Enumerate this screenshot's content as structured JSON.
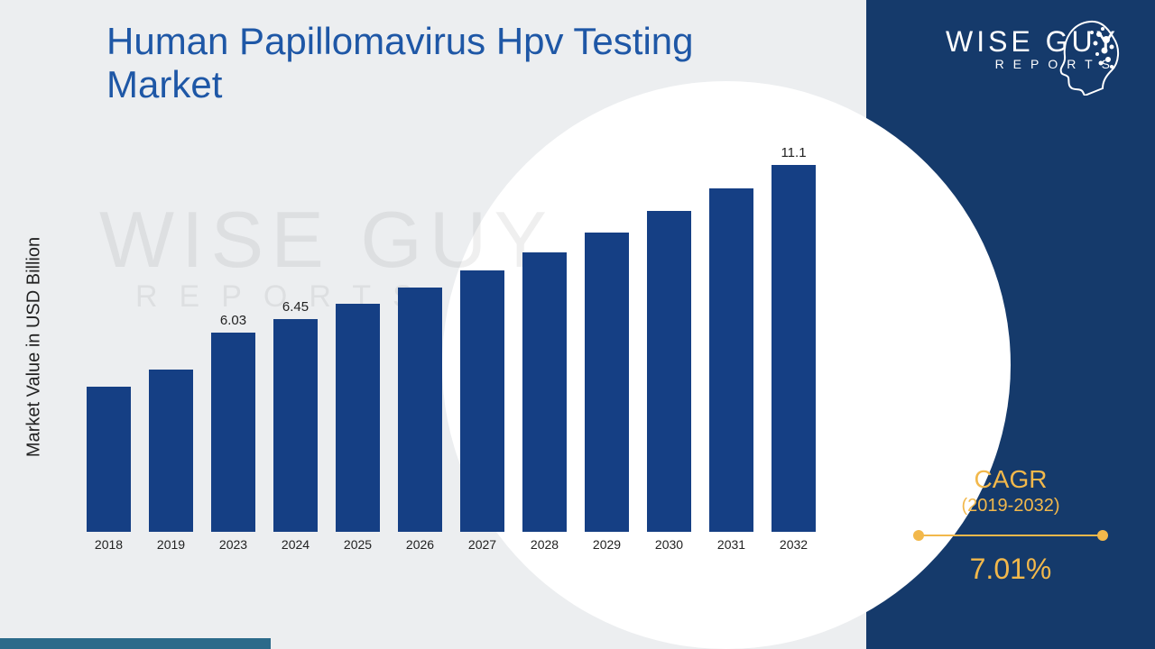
{
  "title": "Human Papillomavirus Hpv Testing Market",
  "ylabel": "Market Value in USD Billion",
  "logo": {
    "brand": "WISE GUY",
    "sub": "REPORTS"
  },
  "cagr": {
    "label": "CAGR",
    "period": "(2019-2032)",
    "value": "7.01%"
  },
  "watermark": {
    "big": "WISE GUY",
    "small": "REPORTS"
  },
  "chart": {
    "type": "bar",
    "ylim": [
      0,
      12
    ],
    "bar_color": "#153f84",
    "background_color": "#eceef0",
    "circle_color": "#ffffff",
    "panel_color": "#153a6b",
    "accent_color": "#f2b84b",
    "title_color": "#1e57a6",
    "title_fontsize": 42,
    "ylabel_fontsize": 20,
    "xlabel_fontsize": 14,
    "value_fontsize": 15,
    "bars": [
      {
        "year": "2018",
        "value": 4.4,
        "show": false
      },
      {
        "year": "2019",
        "value": 4.9,
        "show": false
      },
      {
        "year": "2023",
        "value": 6.03,
        "show": true
      },
      {
        "year": "2024",
        "value": 6.45,
        "show": true
      },
      {
        "year": "2025",
        "value": 6.9,
        "show": false
      },
      {
        "year": "2026",
        "value": 7.4,
        "show": false
      },
      {
        "year": "2027",
        "value": 7.9,
        "show": false
      },
      {
        "year": "2028",
        "value": 8.45,
        "show": false
      },
      {
        "year": "2029",
        "value": 9.05,
        "show": false
      },
      {
        "year": "2030",
        "value": 9.7,
        "show": false
      },
      {
        "year": "2031",
        "value": 10.4,
        "show": false
      },
      {
        "year": "2032",
        "value": 11.1,
        "show": true,
        "display": "11.1"
      }
    ]
  }
}
